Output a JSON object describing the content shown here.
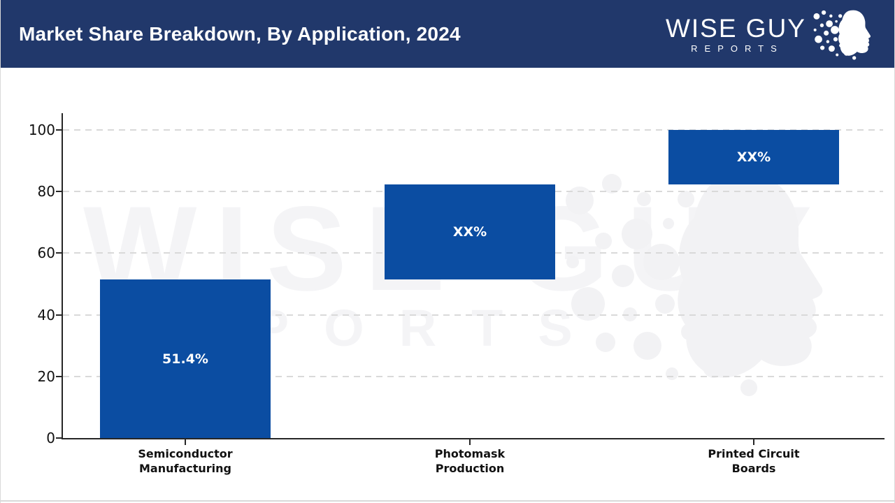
{
  "header": {
    "title": "Market Share Breakdown, By Application, 2024",
    "logo": {
      "line1": "WISE GUY",
      "line2": "REPORTS"
    }
  },
  "watermark": {
    "line1": "WISE GUY",
    "line2": "REPORTS"
  },
  "chart_data": {
    "type": "bar",
    "subtype": "waterfall-stacked-percentage",
    "title": "Market Share Breakdown, By Application, 2024",
    "categories": [
      "Semiconductor Manufacturing",
      "Photomask Production",
      "Printed Circuit Boards"
    ],
    "segments": [
      {
        "category": "Semiconductor Manufacturing",
        "start": 0,
        "end": 51.4,
        "label": "51.4%"
      },
      {
        "category": "Photomask Production",
        "start": 51.4,
        "end": 82.4,
        "label": "XX%"
      },
      {
        "category": "Printed Circuit Boards",
        "start": 82.4,
        "end": 100,
        "label": "XX%"
      }
    ],
    "values_shown": [
      "51.4%",
      "XX%",
      "XX%"
    ],
    "xlabel": "",
    "ylabel": "",
    "ylim": [
      0,
      100
    ],
    "yticks": [
      0,
      20,
      40,
      60,
      80,
      100
    ],
    "grid": "horizontal-dashed",
    "legend": "none",
    "bar_color": "#0b4da2",
    "bar_label_color": "#ffffff",
    "axis_color": "#262626",
    "grid_color": "#d9d9d9"
  },
  "colors": {
    "header_bg": "#21386b",
    "header_text": "#ffffff",
    "background": "#ffffff",
    "watermark": "#f2f2f4"
  }
}
